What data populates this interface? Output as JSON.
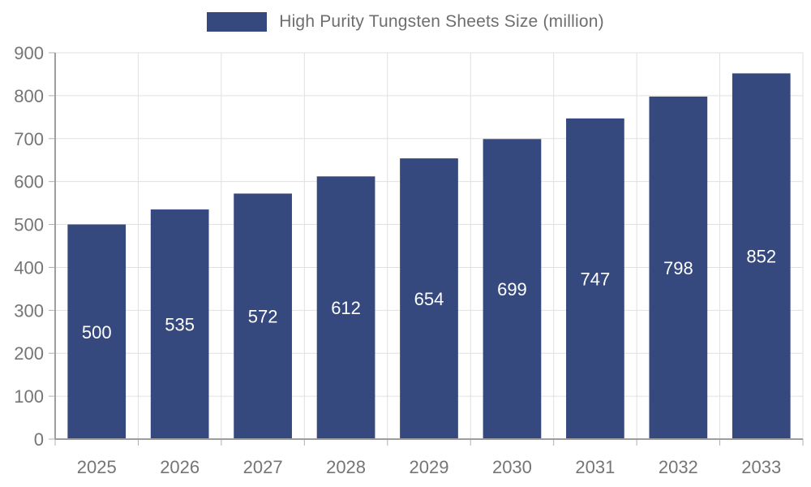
{
  "chart_data": {
    "type": "bar",
    "title": "High Purity Tungsten Sheets Size (million)",
    "series_name": "High Purity Tungsten Sheets Size (million)",
    "categories": [
      "2025",
      "2026",
      "2027",
      "2028",
      "2029",
      "2030",
      "2031",
      "2032",
      "2033"
    ],
    "values": [
      500,
      535,
      572,
      612,
      654,
      699,
      747,
      798,
      852
    ],
    "xlabel": "",
    "ylabel": "",
    "ylim": [
      0,
      900
    ],
    "ytick_step": 100,
    "ytick_labels": [
      "0",
      "100",
      "200",
      "300",
      "400",
      "500",
      "600",
      "700",
      "800",
      "900"
    ],
    "grid": true,
    "legend_position": "top",
    "value_labels": "inside-center",
    "colors": {
      "bar": "#36497E",
      "value_label": "#ffffff",
      "axis_text": "#757575",
      "legend_text": "#6e6e6e",
      "gridline": "#e0e0e0",
      "axis_line": "#9e9e9e",
      "tick": "#b0b0b0",
      "background": "#ffffff"
    }
  },
  "legend": {
    "swatch_icon": "series-color-swatch",
    "label": "High Purity Tungsten Sheets Size (million)"
  }
}
